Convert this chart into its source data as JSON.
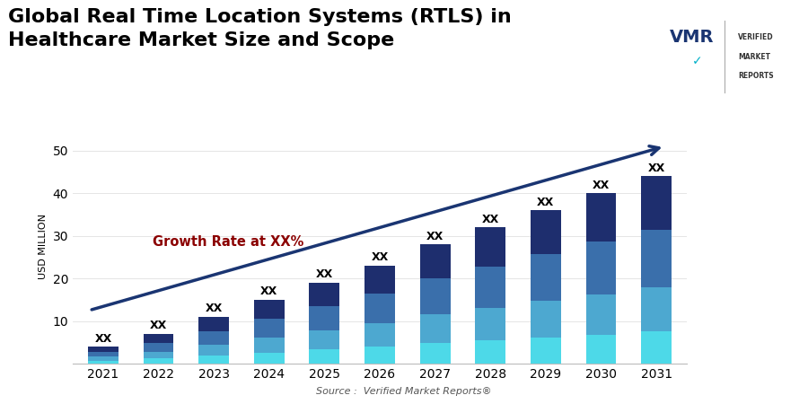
{
  "title": "Global Real Time Location Systems (RTLS) in\nHealthcare Market Size and Scope",
  "ylabel": "USD MILLION",
  "source_text": "Source :  Verified Market Reports®",
  "growth_label": "Growth Rate at XX%",
  "years": [
    2021,
    2022,
    2023,
    2024,
    2025,
    2026,
    2027,
    2028,
    2029,
    2030,
    2031
  ],
  "bar_label": "XX",
  "totals": [
    4.0,
    7.0,
    11.0,
    15.0,
    19.0,
    23.0,
    28.0,
    32.0,
    36.0,
    40.0,
    44.0
  ],
  "segments": [
    [
      0.7,
      1.2,
      1.9,
      2.6,
      3.3,
      4.0,
      4.8,
      5.5,
      6.2,
      6.8,
      7.5
    ],
    [
      1.0,
      1.6,
      2.5,
      3.5,
      4.5,
      5.5,
      6.7,
      7.5,
      8.5,
      9.5,
      10.5
    ],
    [
      1.1,
      2.0,
      3.1,
      4.4,
      5.7,
      7.0,
      8.5,
      9.7,
      11.1,
      12.4,
      13.5
    ],
    [
      1.2,
      2.2,
      3.5,
      4.5,
      5.5,
      6.5,
      8.0,
      9.3,
      10.2,
      11.3,
      12.5
    ]
  ],
  "colors": [
    "#4dd9e8",
    "#4da8d0",
    "#3a6fab",
    "#1e2e6e"
  ],
  "ylim": [
    0,
    55
  ],
  "yticks": [
    0,
    10,
    20,
    30,
    40,
    50
  ],
  "arrow_color": "#1a3572",
  "title_fontsize": 16,
  "label_fontsize": 9,
  "tick_fontsize": 10,
  "growth_color": "#8b0000",
  "background_color": "#ffffff",
  "bar_width": 0.55
}
